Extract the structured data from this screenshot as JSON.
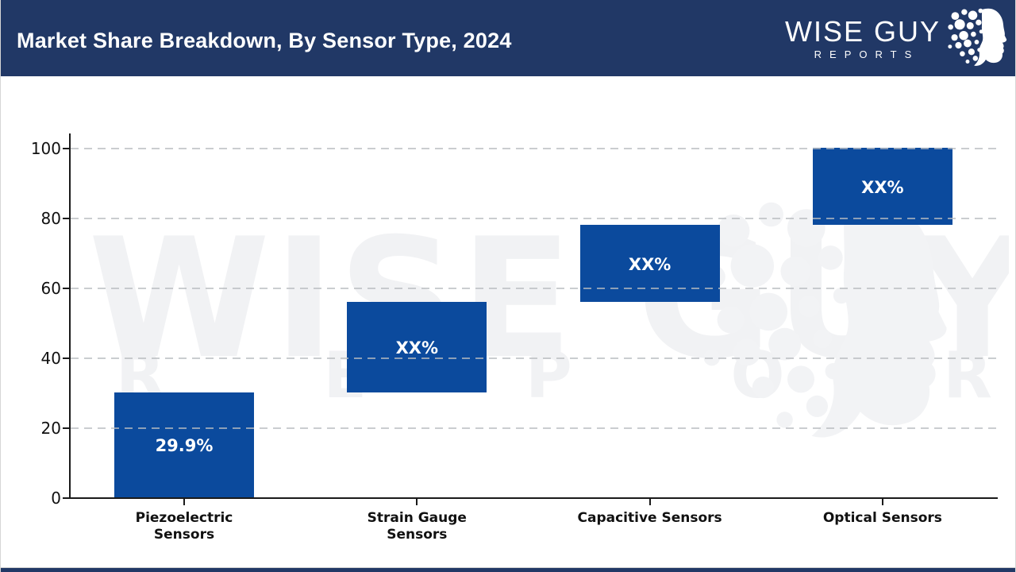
{
  "header": {
    "title": "Market Share Breakdown, By Sensor Type, 2024",
    "logo": {
      "line1": "WISE GUY",
      "line2": "REPORTS"
    }
  },
  "watermark": {
    "line1": "WISE GUY",
    "line2": "REPORTS"
  },
  "colors": {
    "header_bg": "#213866",
    "footer_bg": "#213866",
    "bar_fill": "#0b4a9d",
    "bar_label_text": "#ffffff",
    "gridline": "#d9d9d9",
    "axis": "#1a1a1a",
    "watermark": "#f1f2f4"
  },
  "chart_data": {
    "type": "bar",
    "variant": "waterfall-floating-segments",
    "title": "Market Share Breakdown, By Sensor Type, 2024",
    "categories": [
      "Piezoelectric Sensors",
      "Strain Gauge Sensors",
      "Capacitive Sensors",
      "Optical Sensors"
    ],
    "category_label_lines": [
      [
        "Piezoelectric",
        "Sensors"
      ],
      [
        "Strain Gauge",
        "Sensors"
      ],
      [
        "Capacitive Sensors"
      ],
      [
        "Optical Sensors"
      ]
    ],
    "segments": [
      {
        "category": "Piezoelectric Sensors",
        "start": 0,
        "end": 29.9,
        "label": "29.9%"
      },
      {
        "category": "Strain Gauge Sensors",
        "start": 29.9,
        "end": 55.9,
        "label": "XX%"
      },
      {
        "category": "Capacitive Sensors",
        "start": 55.9,
        "end": 77.9,
        "label": "XX%"
      },
      {
        "category": "Optical Sensors",
        "start": 77.9,
        "end": 99.9,
        "label": "XX%"
      }
    ],
    "xlabel": "",
    "ylabel": "",
    "ylim": [
      0,
      100
    ],
    "yticks": [
      0,
      20,
      40,
      60,
      80,
      100
    ],
    "grid": "horizontal-dashed",
    "legend": "none"
  }
}
